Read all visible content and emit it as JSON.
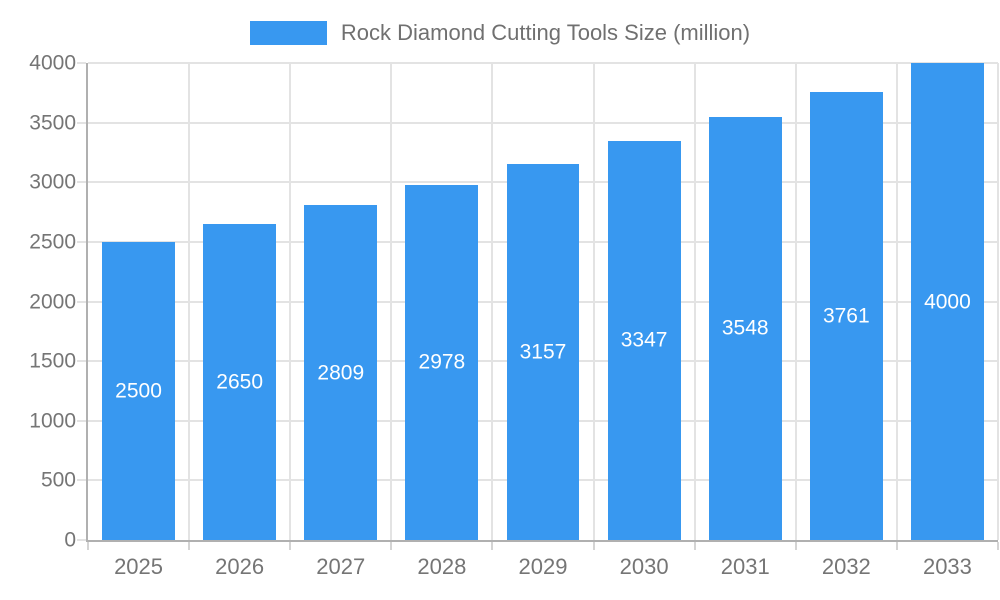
{
  "legend": {
    "label": "Rock Diamond Cutting Tools Size (million)"
  },
  "colors": {
    "bar": "#3898F0",
    "grid": "#E3E3E3",
    "axis": "#B0B0B0",
    "tick": "#D4D4D4",
    "axis_text": "#757575",
    "legend_text": "#707070",
    "bar_label_text": "#FFFFFF",
    "background": "#FFFFFF"
  },
  "chart_data": {
    "type": "bar",
    "title": "Rock Diamond Cutting Tools Size (million)",
    "categories": [
      "2025",
      "2026",
      "2027",
      "2028",
      "2029",
      "2030",
      "2031",
      "2032",
      "2033"
    ],
    "values": [
      2500,
      2650,
      2809,
      2978,
      3157,
      3347,
      3548,
      3761,
      4000
    ],
    "xlabel": "",
    "ylabel": "",
    "ylim": [
      0,
      4000
    ],
    "ytick_step": 500,
    "grid": true,
    "legend_position": "top",
    "bar_labels": "inside-center"
  }
}
